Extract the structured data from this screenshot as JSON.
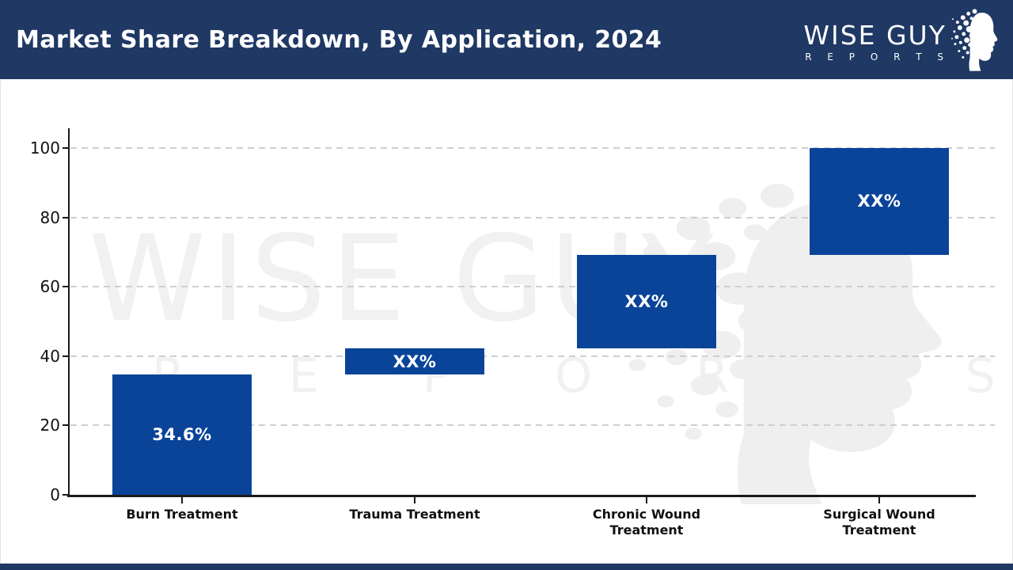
{
  "header": {
    "title": "Market Share Breakdown, By Application, 2024",
    "bg_color": "#1f3864",
    "brand": {
      "name_line": "WISE GUY",
      "reports_line": "R E P O R T S",
      "head_icon": "dotted-head-profile-icon"
    }
  },
  "watermark": {
    "name_line": "WISE GUY",
    "reports_line": "R E P O R T S",
    "color": "#f1f1f1"
  },
  "chart_data": {
    "type": "bar",
    "subtype": "waterfall-floating-bars",
    "title": "Market Share Breakdown, By Application, 2024",
    "categories": [
      "Burn Treatment",
      "Trauma Treatment",
      "Chronic Wound\nTreatment",
      "Surgical Wound\nTreatment"
    ],
    "segments": [
      {
        "category": "Burn Treatment",
        "start": 0,
        "end": 34.6,
        "label": "34.6%"
      },
      {
        "category": "Trauma Treatment",
        "start": 34.6,
        "end": 42.2,
        "label": "XX%"
      },
      {
        "category": "Chronic Wound Treatment",
        "start": 42.2,
        "end": 69.2,
        "label": "XX%"
      },
      {
        "category": "Surgical Wound Treatment",
        "start": 69.2,
        "end": 100,
        "label": "XX%"
      }
    ],
    "xlabel": "",
    "ylabel": "",
    "ylim": [
      0,
      100
    ],
    "yticks": [
      0,
      20,
      40,
      60,
      80,
      100
    ],
    "grid": "horizontal-dashed",
    "legend": "none",
    "bar_color": "#0a4499",
    "bar_label_color": "#ffffff",
    "axis_color": "#1a1a1a",
    "grid_color": "#cfcfcf"
  },
  "footer": {
    "bg_color": "#1f3864"
  }
}
